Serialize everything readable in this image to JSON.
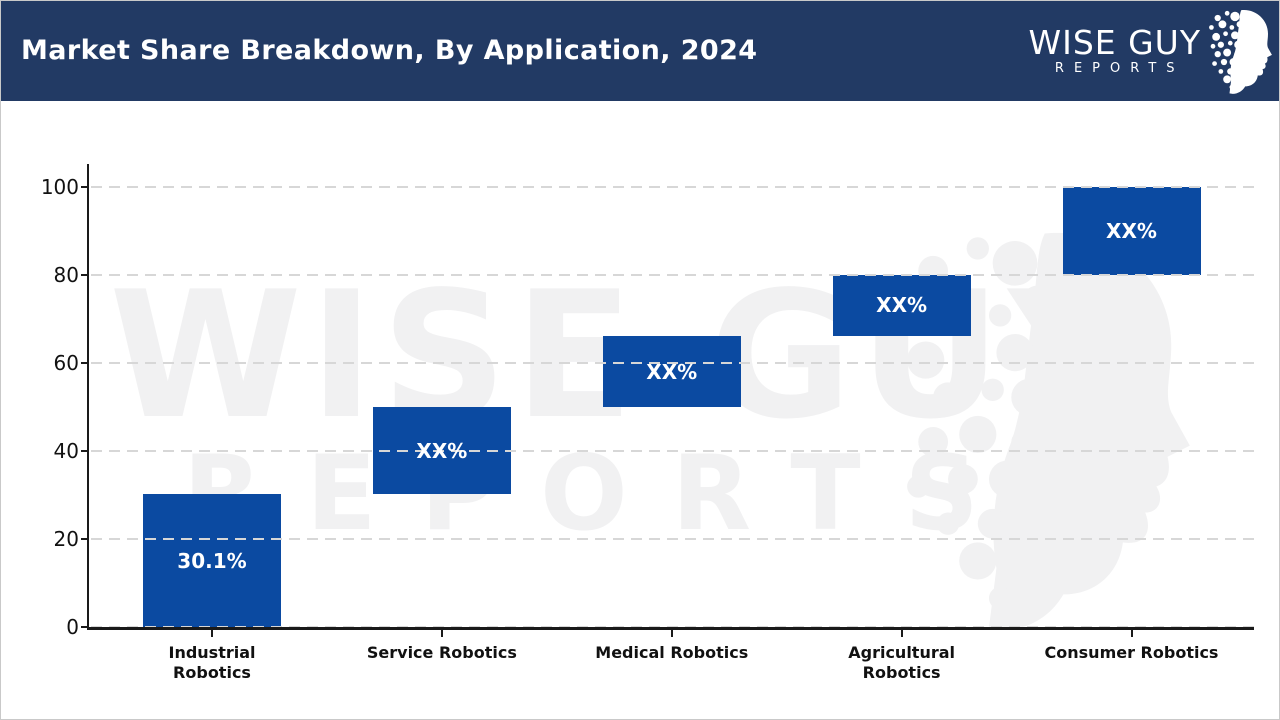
{
  "header": {
    "title": "Market Share Breakdown, By Application, 2024"
  },
  "logo": {
    "brand_top": "WISE GUY",
    "brand_bottom": "REPORTS",
    "face_icon": "dotted-face-profile"
  },
  "watermark": {
    "line1": "WISE GUY",
    "line2": "REPORTS"
  },
  "colors": {
    "header_bg": "#223a64",
    "bar": "#0b4aa1",
    "grid": "#d7d7d7",
    "axis": "#1a1a1a",
    "bar_label": "#ffffff",
    "watermark": "#f1f1f2"
  },
  "chart_data": {
    "type": "bar",
    "variant": "floating-segment-breakdown",
    "title": "Market Share Breakdown, By Application, 2024",
    "categories": [
      "Industrial Robotics",
      "Service Robotics",
      "Medical Robotics",
      "Agricultural Robotics",
      "Consumer Robotics"
    ],
    "bars": [
      {
        "category": "Industrial Robotics",
        "category_lines": [
          "Industrial",
          "Robotics"
        ],
        "start": 0,
        "end": 30.1,
        "label": "30.1%"
      },
      {
        "category": "Service Robotics",
        "category_lines": [
          "Service Robotics"
        ],
        "start": 30.1,
        "end": 50,
        "label": "XX%"
      },
      {
        "category": "Medical Robotics",
        "category_lines": [
          "Medical Robotics"
        ],
        "start": 50,
        "end": 66,
        "label": "XX%"
      },
      {
        "category": "Agricultural Robotics",
        "category_lines": [
          "Agricultural",
          "Robotics"
        ],
        "start": 66,
        "end": 80,
        "label": "XX%"
      },
      {
        "category": "Consumer Robotics",
        "category_lines": [
          "Consumer Robotics"
        ],
        "start": 80,
        "end": 100,
        "label": "XX%"
      }
    ],
    "yticks": [
      0,
      20,
      40,
      60,
      80,
      100
    ],
    "ylim": [
      0,
      105
    ],
    "xlabel": "",
    "ylabel": "",
    "grid": "horizontal-dashed",
    "legend": null
  }
}
